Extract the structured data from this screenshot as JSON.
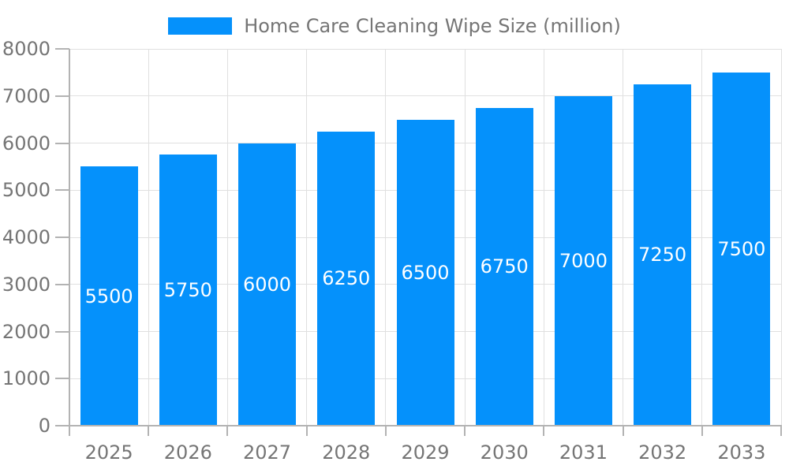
{
  "legend": {
    "label": "Home Care Cleaning Wipe Size (million)"
  },
  "chart_data": {
    "type": "bar",
    "title": "Home Care Cleaning Wipe Size (million)",
    "series_name": "Home Care Cleaning Wipe Size (million)",
    "categories": [
      "2025",
      "2026",
      "2027",
      "2028",
      "2029",
      "2030",
      "2031",
      "2032",
      "2033"
    ],
    "values": [
      5500,
      5750,
      6000,
      6250,
      6500,
      6750,
      7000,
      7250,
      7500
    ],
    "bar_labels": [
      "5500",
      "5750",
      "6000",
      "6250",
      "6500",
      "6750",
      "7000",
      "7250",
      "7500"
    ],
    "xlabel": "",
    "ylabel": "",
    "ylim": [
      0,
      8000
    ],
    "ytick_step": 1000,
    "yticks": [
      0,
      1000,
      2000,
      3000,
      4000,
      5000,
      6000,
      7000,
      8000
    ],
    "grid": true,
    "legend_position": "top-center",
    "colors": {
      "bar": "#0591fb",
      "bar_label": "#ffffff",
      "axis": "#b3b3b3",
      "grid": "#e0e0e0",
      "text": "#757575",
      "background": "#ffffff"
    }
  }
}
